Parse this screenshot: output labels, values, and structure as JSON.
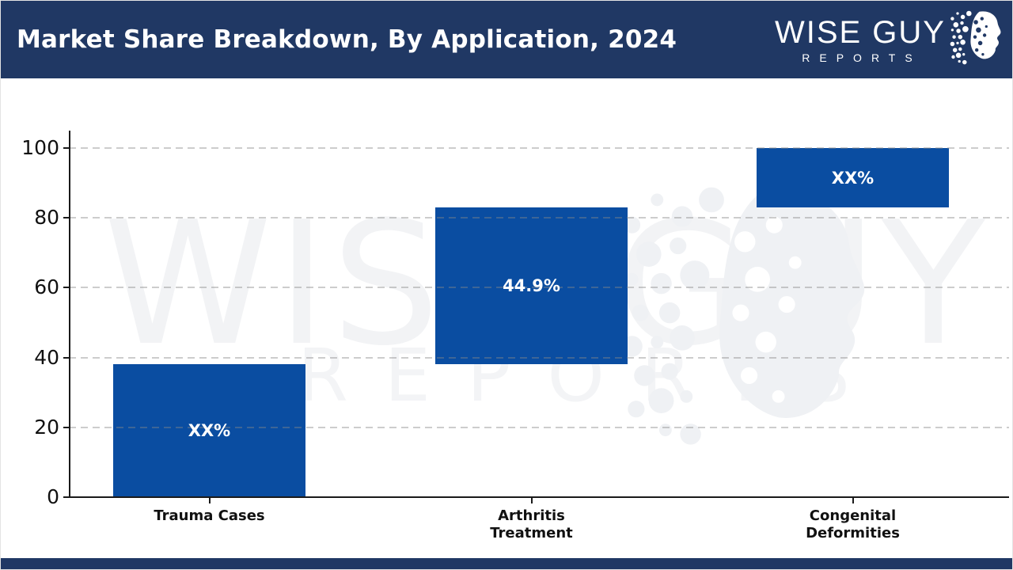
{
  "header": {
    "title": "Market Share Breakdown, By Application, 2024",
    "brand_line1": "WISE GUY",
    "brand_line2": "REPORTS"
  },
  "watermark": {
    "line1": "WISE GUY",
    "line2": "REPORTS"
  },
  "colors": {
    "header_bg": "#203864",
    "footer_bg": "#203864",
    "bar": "#0a4da1",
    "bar_label": "#ffffff",
    "axis": "#1a1a1a",
    "grid": "#d2d2d2",
    "watermark": "#f2f3f5"
  },
  "chart_data": {
    "type": "bar",
    "subtype": "floating-segment (waterfall of market share)",
    "title": "Market Share Breakdown, By Application, 2024",
    "categories": [
      "Trauma Cases",
      "Arthritis\nTreatment",
      "Congenital\nDeformities"
    ],
    "bars": [
      {
        "category": "Trauma Cases",
        "label": "XX%",
        "start": 0,
        "end": 38
      },
      {
        "category": "Arthritis Treatment",
        "label": "44.9%",
        "start": 38,
        "end": 82.9
      },
      {
        "category": "Congenital Deformities",
        "label": "XX%",
        "start": 82.9,
        "end": 100
      }
    ],
    "xlabel": "",
    "ylabel": "",
    "ylim": [
      0,
      100
    ],
    "yticks": [
      0,
      20,
      40,
      60,
      80,
      100
    ],
    "grid": "horizontal-dashed",
    "legend": "none",
    "bar_color": "#0a4da1",
    "label_color": "#ffffff"
  }
}
